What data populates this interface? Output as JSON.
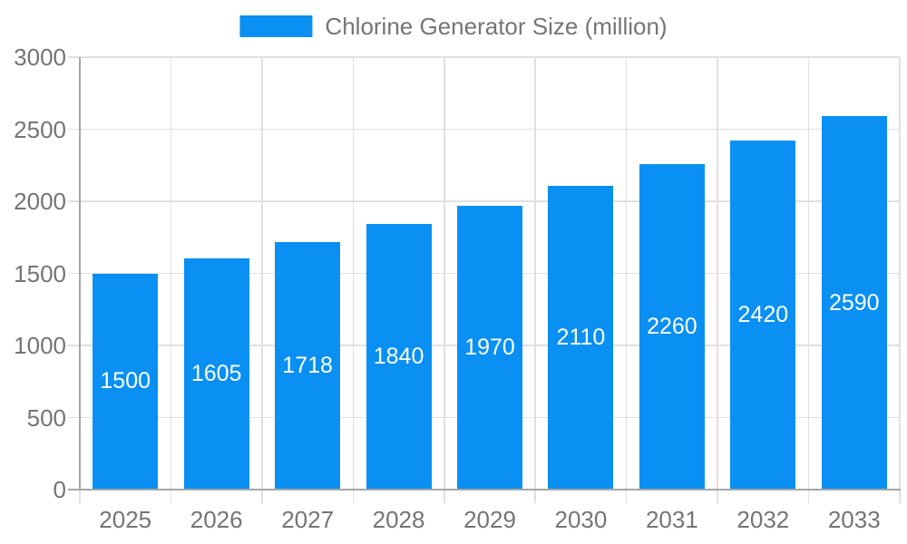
{
  "legend": {
    "label": "Chlorine Generator Size (million)"
  },
  "chart_data": {
    "type": "bar",
    "title": "",
    "xlabel": "",
    "ylabel": "",
    "categories": [
      "2025",
      "2026",
      "2027",
      "2028",
      "2029",
      "2030",
      "2031",
      "2032",
      "2033"
    ],
    "series": [
      {
        "name": "Chlorine Generator Size (million)",
        "values": [
          1500,
          1605,
          1718,
          1840,
          1970,
          2110,
          2260,
          2420,
          2590
        ]
      }
    ],
    "values": [
      1500,
      1605,
      1718,
      1840,
      1970,
      2110,
      2260,
      2420,
      2590
    ],
    "bar_labels": [
      1500,
      1605,
      1718,
      1840,
      1970,
      2110,
      2260,
      2420,
      2590
    ],
    "bar_label_position": "inside-center",
    "ylim": [
      0,
      3000
    ],
    "yticks": [
      0,
      500,
      1000,
      1500,
      2000,
      2500,
      3000
    ],
    "grid": true,
    "legend_position": "top-center"
  },
  "colors": {
    "bar": "#0990f2",
    "bar_label_text": "#ffffff",
    "axis_text": "#757575",
    "grid_line": "#e0e0e0",
    "axis_line": "#a6a6a6",
    "background": "#ffffff"
  }
}
